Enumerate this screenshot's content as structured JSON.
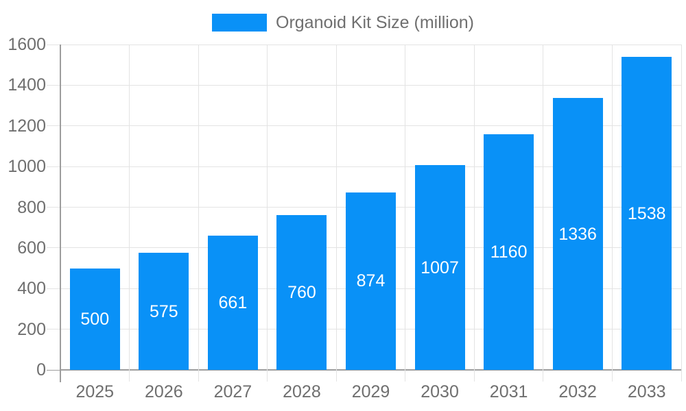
{
  "chart_data": {
    "type": "bar",
    "title": "Organoid Kit Size (million)",
    "categories": [
      "2025",
      "2026",
      "2027",
      "2028",
      "2029",
      "2030",
      "2031",
      "2032",
      "2033"
    ],
    "values": [
      500,
      575,
      661,
      760,
      874,
      1007,
      1160,
      1336,
      1538
    ],
    "xlabel": "",
    "ylabel": "",
    "ylim": [
      0,
      1600
    ],
    "ytick_step": 200,
    "grid": true,
    "legend_position": "top",
    "value_labels": "inside-center",
    "colors": {
      "bar": "#0991f7",
      "bar_label": "#ffffff",
      "axis_text": "#6f6f6f",
      "grid_line": "#e3e3e3",
      "axis_line": "#9d9d9d"
    }
  }
}
